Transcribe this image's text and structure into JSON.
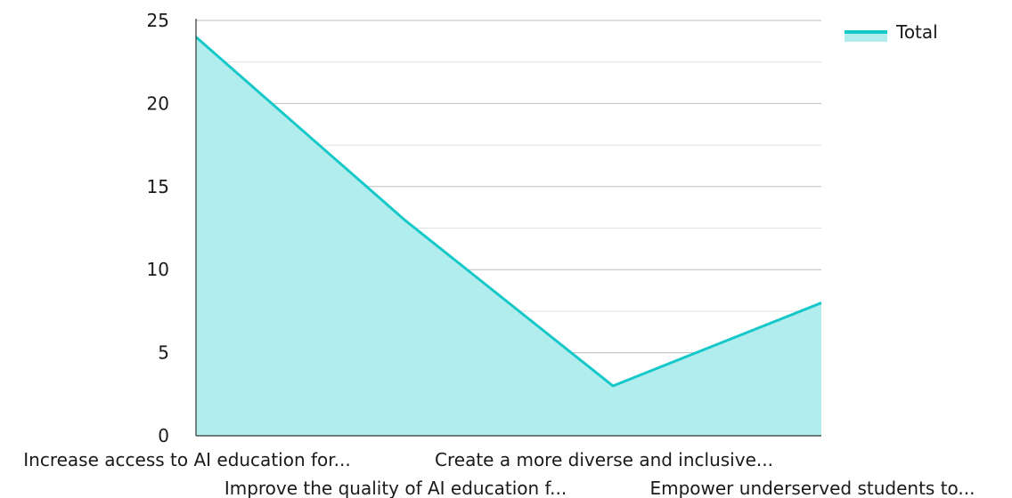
{
  "chart_data": {
    "type": "area",
    "categories": [
      "Increase access to AI education for...",
      "Improve the quality of AI education f...",
      "Create a more diverse and inclusive...",
      "Empower underserved students to..."
    ],
    "series": [
      {
        "name": "Total",
        "values": [
          24,
          13,
          3,
          8
        ],
        "line_color": "#17c8c8",
        "fill_color": "#b1eded"
      }
    ],
    "ylim": [
      0,
      25
    ],
    "yticks": [
      "0",
      "5",
      "10",
      "15",
      "20",
      "25"
    ],
    "grid": true,
    "legend": "top-right"
  }
}
